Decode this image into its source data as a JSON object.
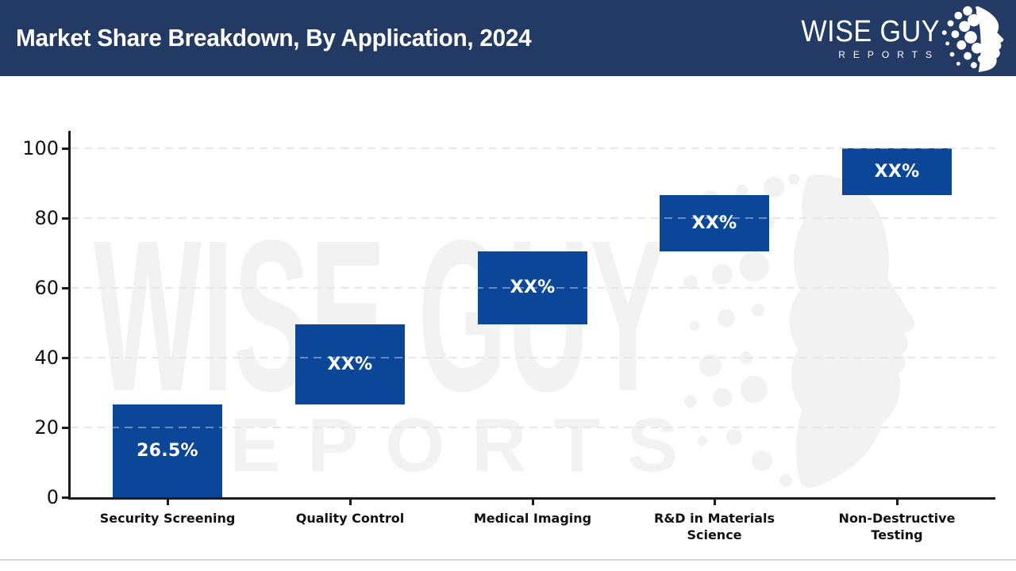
{
  "header": {
    "title": "Market Share Breakdown, By Application, 2024",
    "logo": {
      "wordmark": "WISE GUY",
      "subtext": "REPORTS"
    }
  },
  "watermark": {
    "wordmark": "WISE GUY",
    "subtext": "REPORTS"
  },
  "chart_data": {
    "type": "bar",
    "subtype": "waterfall",
    "title": "Market Share Breakdown, By Application, 2024",
    "categories": [
      "Security Screening",
      "Quality Control",
      "Medical Imaging",
      "R&D in Materials Science",
      "Non-Destructive Testing"
    ],
    "category_label_lines": [
      [
        "Security Screening"
      ],
      [
        "Quality Control"
      ],
      [
        "Medical Imaging"
      ],
      [
        "R&D in Materials",
        "Science"
      ],
      [
        "Non-Destructive",
        "Testing"
      ]
    ],
    "segments": [
      {
        "category": "Security Screening",
        "start": 0,
        "end": 26.5,
        "value": 26.5,
        "label": "26.5%"
      },
      {
        "category": "Quality Control",
        "start": 26.5,
        "end": 49.5,
        "value": 23,
        "label": "XX%"
      },
      {
        "category": "Medical Imaging",
        "start": 49.5,
        "end": 70.5,
        "value": 21,
        "label": "XX%"
      },
      {
        "category": "R&D in Materials Science",
        "start": 70.5,
        "end": 86.5,
        "value": 16,
        "label": "XX%"
      },
      {
        "category": "Non-Destructive Testing",
        "start": 86.5,
        "end": 100,
        "value": 13.5,
        "label": "XX%"
      }
    ],
    "xlabel": "",
    "ylabel": "",
    "yticks": [
      0,
      20,
      40,
      60,
      80,
      100
    ],
    "ylim": [
      0,
      105
    ],
    "grid": "dashed-horizontal",
    "legend": "none",
    "bar_color": "#0c4699",
    "bar_label_color": "#ffffff"
  },
  "colors": {
    "header_bg": "#223a64",
    "header_text": "#ffffff",
    "bar": "#0c4699",
    "grid": "#d9d9d9",
    "axis": "#1c1c1c",
    "watermark": "#f2f2f2",
    "background": "#ffffff"
  }
}
